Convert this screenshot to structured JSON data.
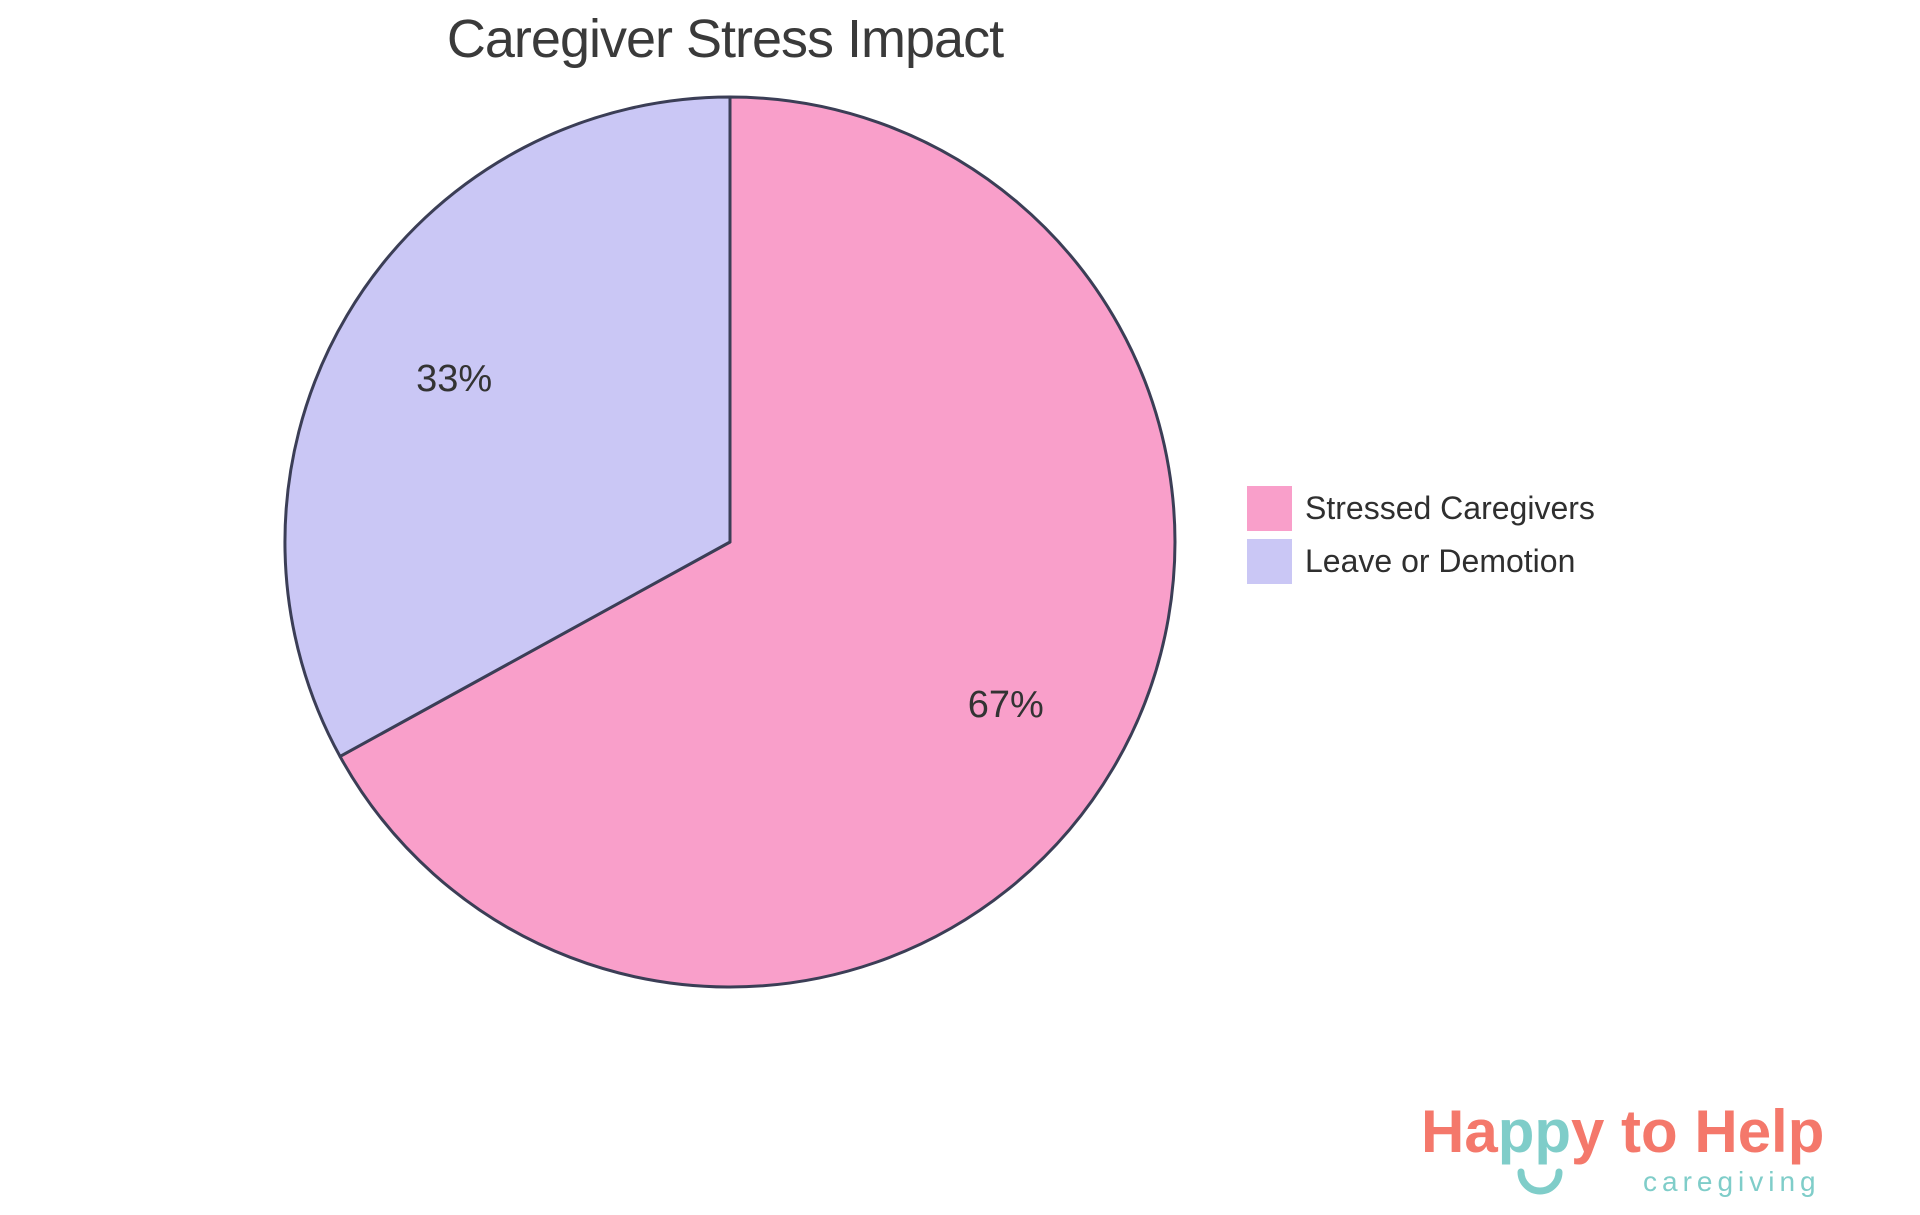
{
  "chart_data": {
    "type": "pie",
    "title": "Caregiver Stress Impact",
    "labels": [
      "Stressed Caregivers",
      "Leave or Demotion"
    ],
    "values": [
      67,
      33
    ],
    "value_labels": [
      "67%",
      "33%"
    ],
    "colors": [
      "#F99FCA",
      "#CAC7F5"
    ],
    "border_color": "#3B3E56",
    "border_width": 3,
    "start_angle": "12 o'clock",
    "direction": "clockwise",
    "label_position": "inside",
    "label_color": "#333333",
    "legend_position": "right",
    "background": "#ffffff"
  },
  "logo": {
    "word_part1": "Ha",
    "word_part2": "pp",
    "word_part3": "y",
    "word_part4": " to Help",
    "tagline": "caregiving",
    "coral": "#F4786B",
    "teal": "#7FCDC9"
  }
}
